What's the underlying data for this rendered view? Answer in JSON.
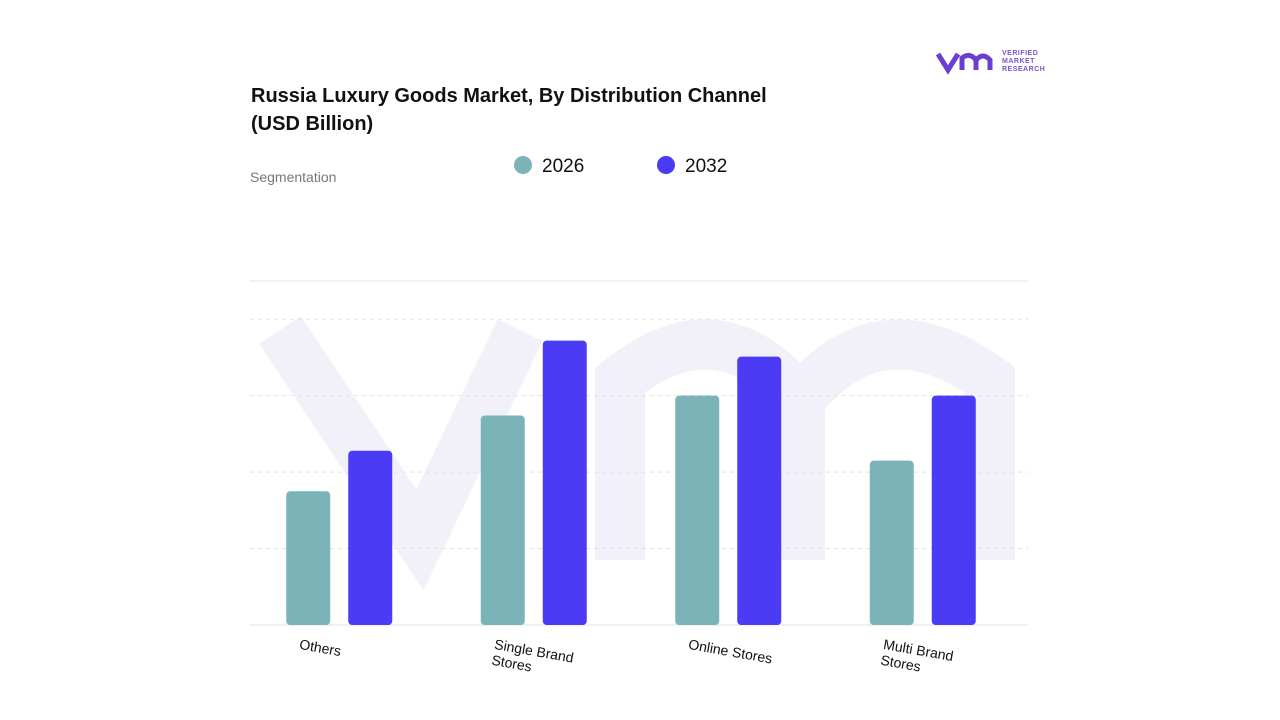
{
  "logo": {
    "brand": "VERIFIED MARKET RESEARCH"
  },
  "chart_data": {
    "type": "bar",
    "title": "Russia Luxury Goods Market, By Distribution Channel (USD Billion)",
    "subtitle": "Segmentation",
    "categories": [
      "Others",
      "Single Brand Stores",
      "Online Stores",
      "Multi Brand Stores"
    ],
    "series": [
      {
        "name": "2026",
        "color": "#7ab4b8",
        "values": [
          1.75,
          2.74,
          3.0,
          2.15
        ]
      },
      {
        "name": "2032",
        "color": "#4b3bf5",
        "values": [
          2.28,
          3.72,
          3.51,
          3.0
        ]
      }
    ],
    "ylim": [
      0,
      4.5
    ],
    "yticks": [
      0,
      1,
      2,
      3,
      4
    ],
    "grid": true
  }
}
